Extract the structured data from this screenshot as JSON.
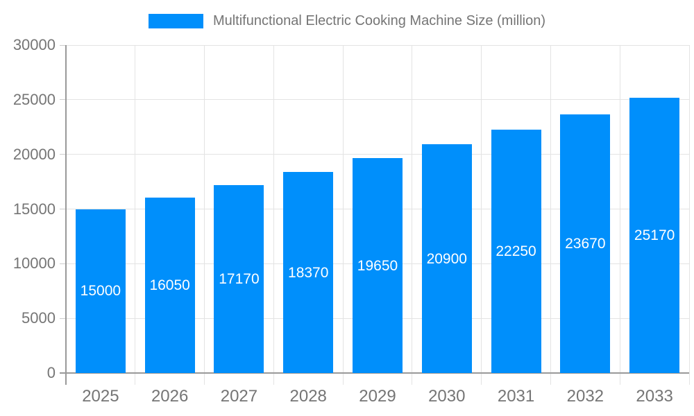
{
  "chart_data": {
    "type": "bar",
    "title": "Multifunctional Electric Cooking Machine Size (million)",
    "legend_position": "top",
    "categories": [
      "2025",
      "2026",
      "2027",
      "2028",
      "2029",
      "2030",
      "2031",
      "2032",
      "2033"
    ],
    "series": [
      {
        "name": "Multifunctional Electric Cooking Machine Size (million)",
        "values": [
          15000,
          16050,
          17170,
          18370,
          19650,
          20900,
          22250,
          23670,
          25170
        ]
      }
    ],
    "value_labels": [
      "15000",
      "16050",
      "17170",
      "18370",
      "19650",
      "20900",
      "22250",
      "23670",
      "25170"
    ],
    "xlabel": "",
    "ylabel": "",
    "ylim": [
      0,
      30000
    ],
    "ytick_interval": 5000,
    "ytick_labels": [
      "0",
      "5000",
      "10000",
      "15000",
      "20000",
      "25000",
      "30000"
    ],
    "grid": true,
    "colors": {
      "bar": "#008FFB",
      "bar_label_text": "#ffffff",
      "axis_text": "#757575",
      "grid_line": "#e3e3e3",
      "axis_line": "#999999",
      "tick_line": "#cccccc"
    }
  }
}
